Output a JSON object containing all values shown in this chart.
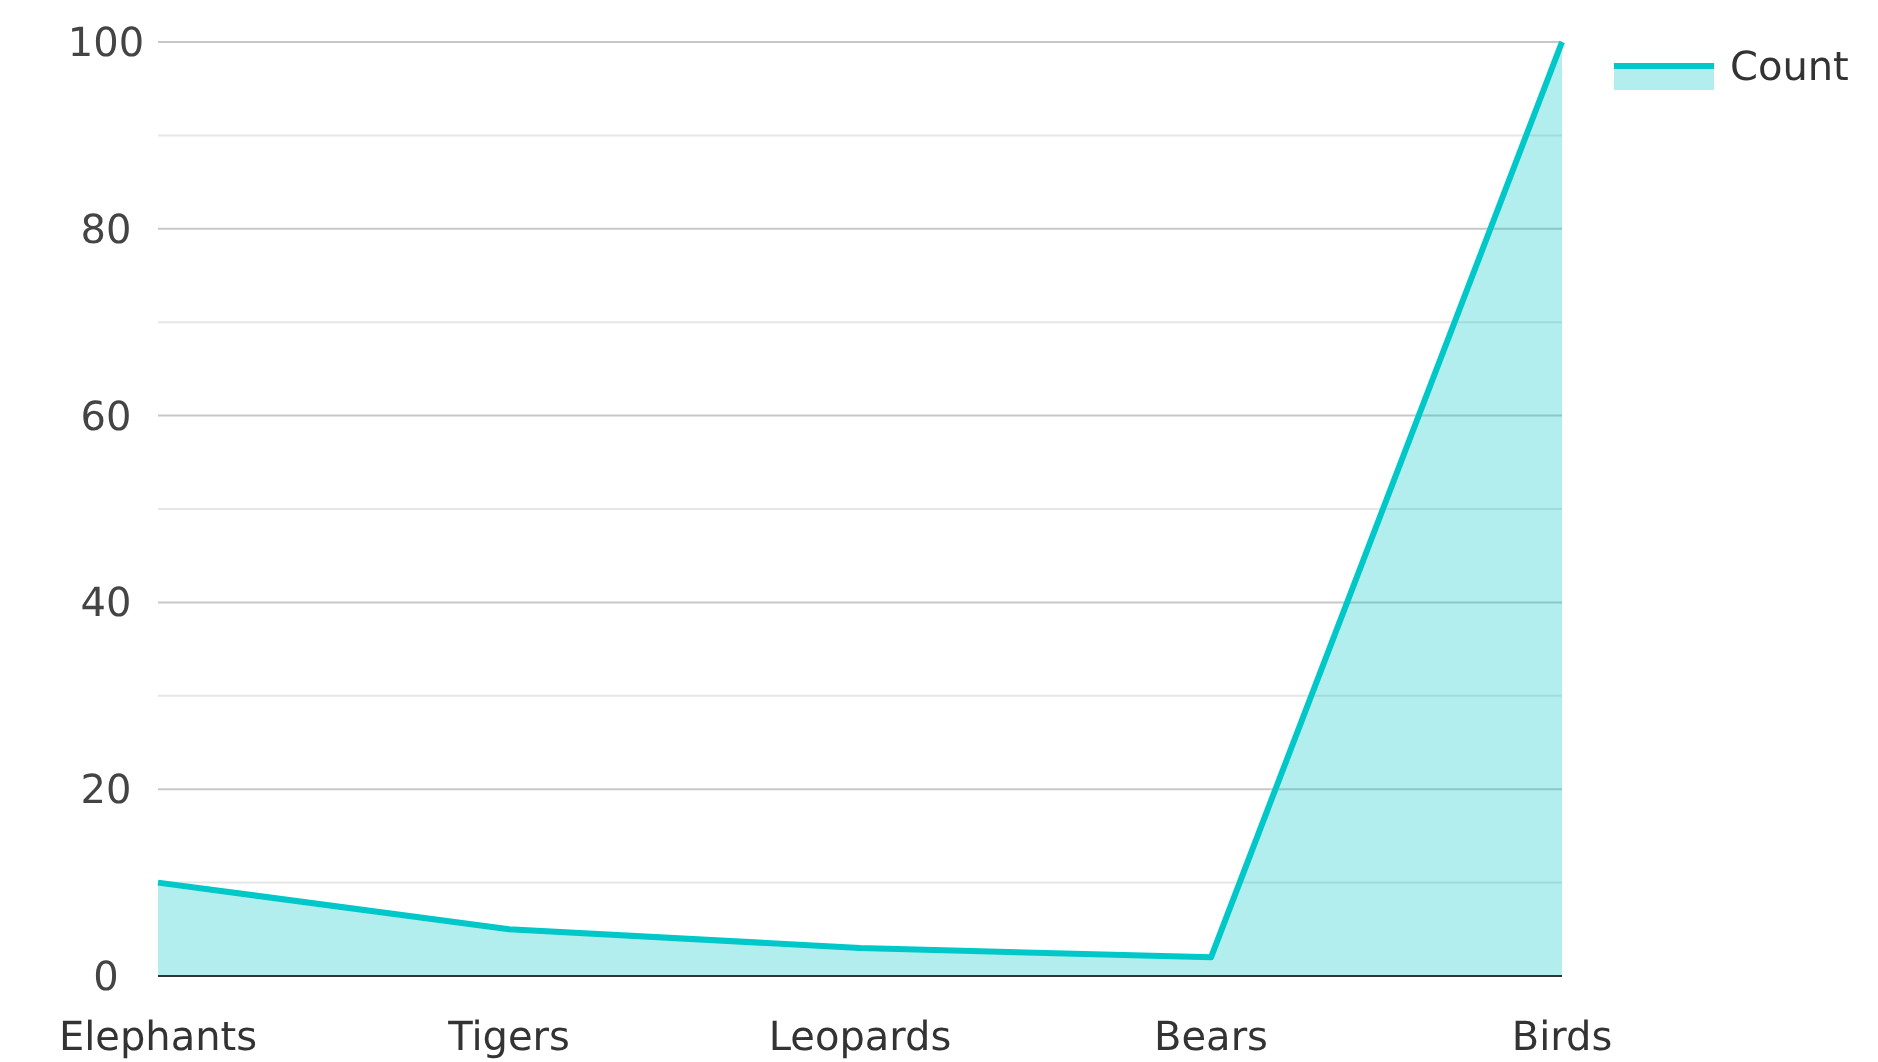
{
  "chart_data": {
    "type": "area",
    "categories": [
      "Elephants",
      "Tigers",
      "Leopards",
      "Bears",
      "Birds"
    ],
    "series": [
      {
        "name": "Count",
        "color": "#00c8c8",
        "values": [
          10,
          5,
          3,
          2,
          100
        ]
      }
    ],
    "ylim": [
      0,
      100
    ],
    "yticks": [
      0,
      {
        "value": 10,
        "label": null
      },
      20,
      {
        "value": 30,
        "label": null
      },
      40,
      {
        "value": 50,
        "label": null
      },
      60,
      {
        "value": 70,
        "label": null
      },
      80,
      {
        "value": 90,
        "label": null
      },
      100
    ],
    "grid": "y",
    "legend": "top right"
  }
}
